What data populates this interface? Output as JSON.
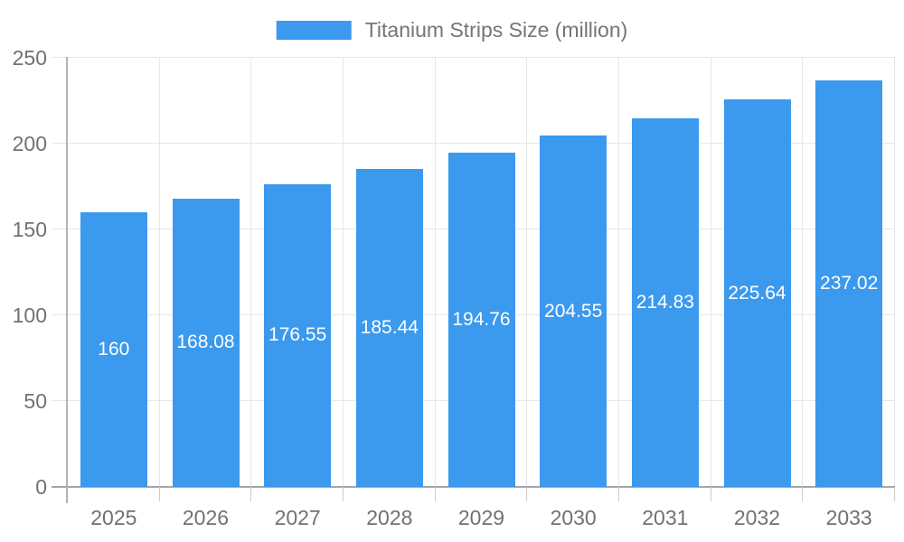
{
  "chart_data": {
    "type": "bar",
    "title": "Titanium Strips Size (million)",
    "legend": {
      "label": "Titanium Strips Size (million)",
      "position": "top"
    },
    "categories": [
      "2025",
      "2026",
      "2027",
      "2028",
      "2029",
      "2030",
      "2031",
      "2032",
      "2033"
    ],
    "series": [
      {
        "name": "Titanium Strips Size (million)",
        "values": [
          160,
          168.08,
          176.55,
          185.44,
          194.76,
          204.55,
          214.83,
          225.64,
          237.02
        ]
      }
    ],
    "value_labels": [
      "160",
      "168.08",
      "176.55",
      "185.44",
      "194.76",
      "204.55",
      "214.83",
      "225.64",
      "237.02"
    ],
    "xlabel": "",
    "ylabel": "",
    "ylim": [
      0,
      250
    ],
    "yticks": [
      0,
      50,
      100,
      150,
      200,
      250
    ],
    "grid": true,
    "legend_position": "top",
    "colors": {
      "bar": "#3B99EE",
      "bar_label": "#FFFFFF",
      "axis_text": "#717171",
      "legend_text": "#757575",
      "grid": "#E7E7E7",
      "axis_line": "#B3B3B3",
      "baseline": "#A6A6A6",
      "tick": "#CDCDCD",
      "background": "#FFFFFF"
    }
  }
}
